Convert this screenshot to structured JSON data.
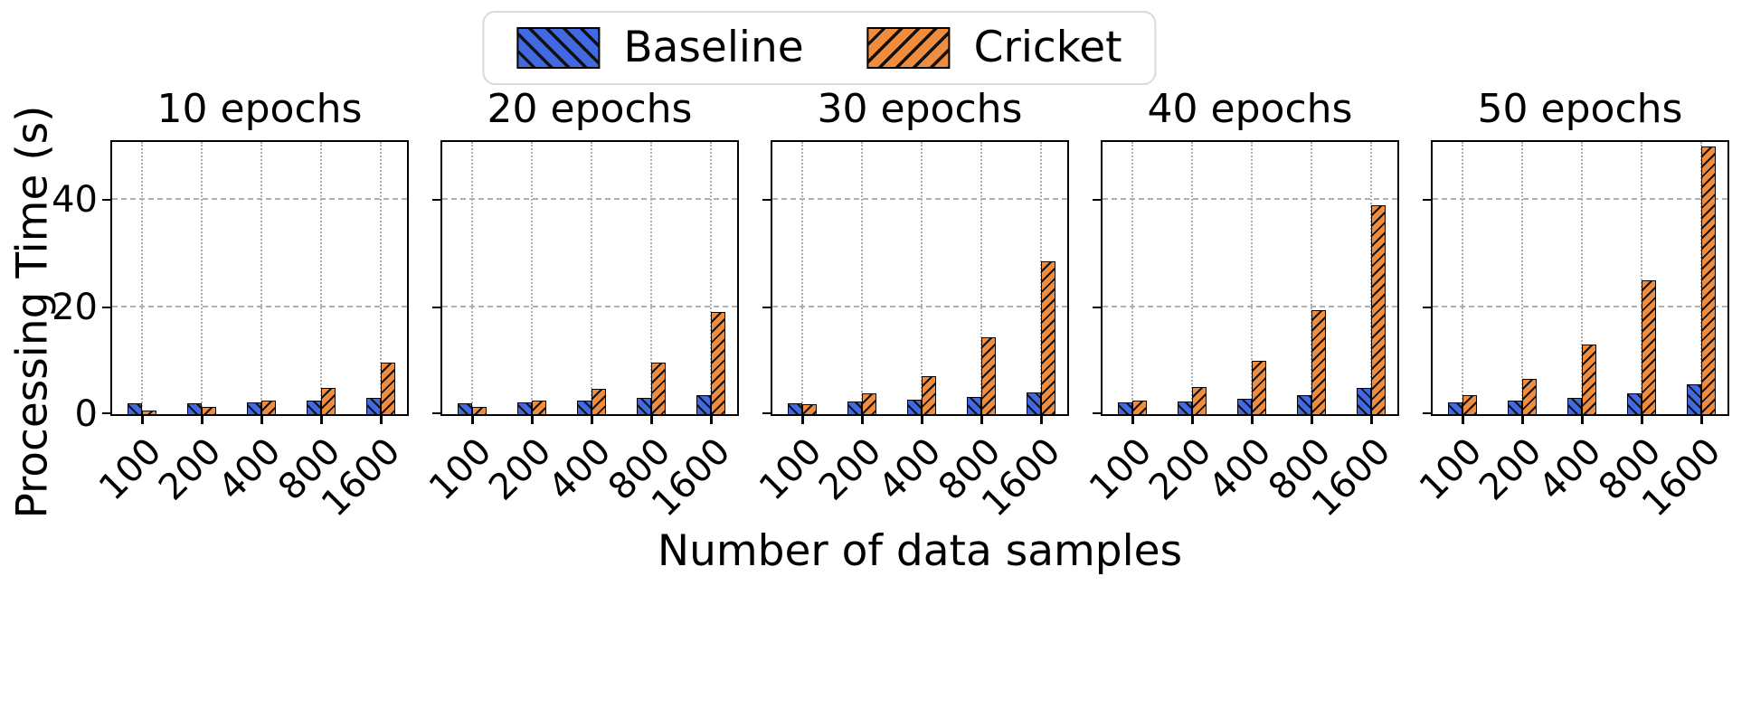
{
  "chart_data": {
    "type": "bar",
    "title": "",
    "xlabel": "Number of data samples",
    "ylabel": "Processing Time (s)",
    "categories": [
      "100",
      "200",
      "400",
      "800",
      "1600"
    ],
    "yticks": [
      0,
      20,
      40
    ],
    "ylim": [
      0,
      51.5
    ],
    "grid": true,
    "legend_position": "top-center",
    "legend": [
      "Baseline",
      "Cricket"
    ],
    "series_styles": [
      {
        "name": "Baseline",
        "color": "#4169e1",
        "hatch": "\\"
      },
      {
        "name": "Cricket",
        "color": "#f08c3e",
        "hatch": "/"
      }
    ],
    "subplots": [
      {
        "title": "10 epochs",
        "series": [
          {
            "name": "Baseline",
            "values": [
              2.1,
              2.1,
              2.2,
              2.5,
              3.0
            ]
          },
          {
            "name": "Cricket",
            "values": [
              0.7,
              1.3,
              2.5,
              4.9,
              9.6
            ]
          }
        ]
      },
      {
        "title": "20 epochs",
        "series": [
          {
            "name": "Baseline",
            "values": [
              2.1,
              2.2,
              2.5,
              3.0,
              3.6
            ]
          },
          {
            "name": "Cricket",
            "values": [
              1.3,
              2.5,
              4.8,
              9.6,
              19.0
            ]
          }
        ]
      },
      {
        "title": "30 epochs",
        "series": [
          {
            "name": "Baseline",
            "values": [
              2.1,
              2.3,
              2.7,
              3.2,
              4.1
            ]
          },
          {
            "name": "Cricket",
            "values": [
              1.9,
              3.8,
              7.1,
              14.4,
              28.5
            ]
          }
        ]
      },
      {
        "title": "40 epochs",
        "series": [
          {
            "name": "Baseline",
            "values": [
              2.2,
              2.4,
              2.8,
              3.5,
              4.9
            ]
          },
          {
            "name": "Cricket",
            "values": [
              2.6,
              5.0,
              9.9,
              19.5,
              39.0
            ]
          }
        ]
      },
      {
        "title": "50 epochs",
        "series": [
          {
            "name": "Baseline",
            "values": [
              2.2,
              2.5,
              3.0,
              3.9,
              5.5
            ]
          },
          {
            "name": "Cricket",
            "values": [
              3.5,
              6.6,
              13.0,
              25.0,
              50.0
            ]
          }
        ]
      }
    ]
  }
}
